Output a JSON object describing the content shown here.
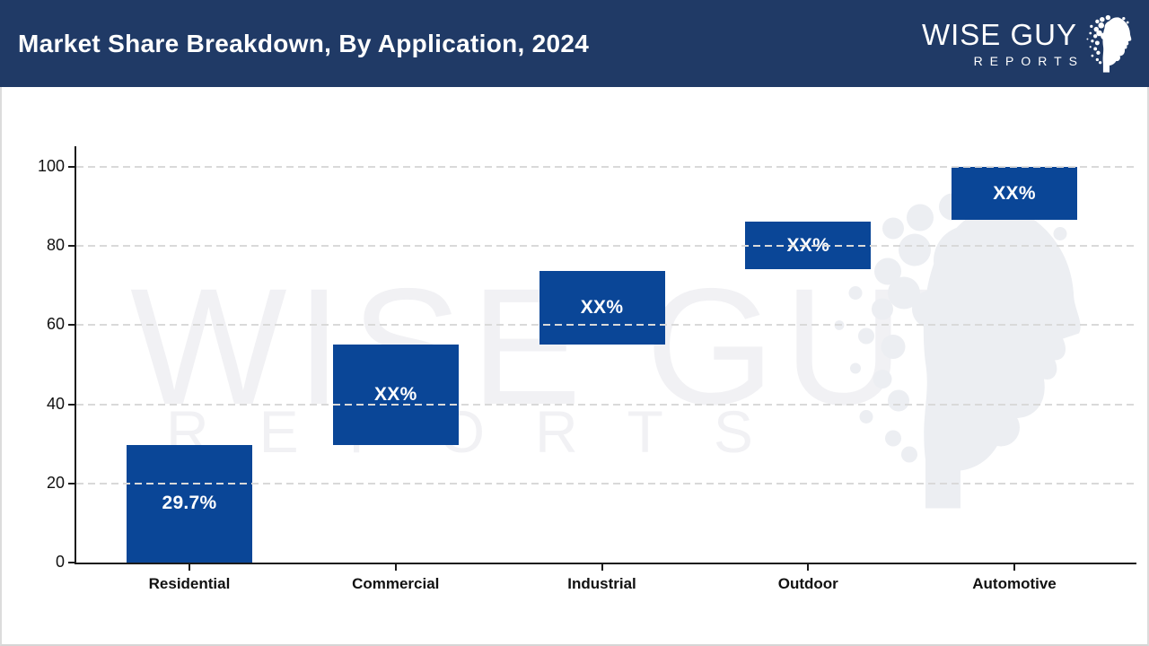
{
  "header": {
    "title": "Market Share Breakdown, By Application, 2024",
    "logo": {
      "line1": "WISE GUY",
      "line2": "REPORTS"
    }
  },
  "watermark": {
    "line1": "WISE GUY",
    "line2": "REPORTS"
  },
  "chart_data": {
    "type": "bar",
    "subtype": "waterfall",
    "title": "Market Share Breakdown, By Application, 2024",
    "categories": [
      "Residential",
      "Commercial",
      "Industrial",
      "Outdoor",
      "Automotive"
    ],
    "segments": [
      {
        "category": "Residential",
        "from": 0,
        "to": 29.7,
        "label": "29.7%"
      },
      {
        "category": "Commercial",
        "from": 29.7,
        "to": 55.0,
        "label": "XX%"
      },
      {
        "category": "Industrial",
        "from": 55.0,
        "to": 73.7,
        "label": "XX%"
      },
      {
        "category": "Outdoor",
        "from": 74.0,
        "to": 86.2,
        "label": "XX%"
      },
      {
        "category": "Automotive",
        "from": 86.5,
        "to": 100.0,
        "label": "XX%"
      }
    ],
    "yticks": [
      0,
      20,
      40,
      60,
      80,
      100
    ],
    "ylim": [
      0,
      105
    ],
    "xlabel": "",
    "ylabel": "",
    "grid": "horizontal-dashed, drawn above bars",
    "legend": "none",
    "colors": {
      "bar": "#0a4697",
      "bar_label": "#ffffff",
      "header_bg": "#203a66",
      "grid": "#d9d9d9",
      "axis": "#1a1a1a",
      "watermark": "#f1f1f4"
    }
  }
}
